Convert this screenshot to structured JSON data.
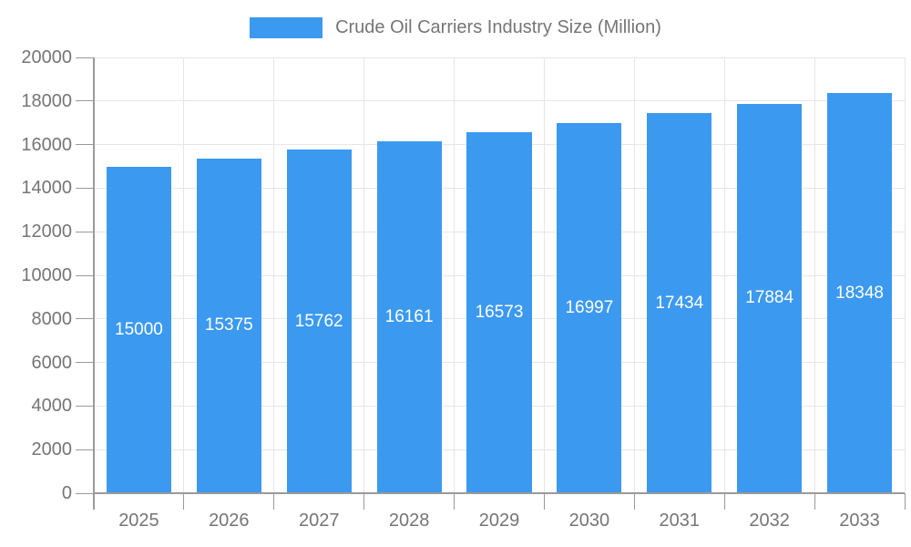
{
  "chart_data": {
    "type": "bar",
    "title": "Crude Oil Carriers Industry Size (Million)",
    "categories": [
      "2025",
      "2026",
      "2027",
      "2028",
      "2029",
      "2030",
      "2031",
      "2032",
      "2033"
    ],
    "values": [
      15000,
      15375,
      15762,
      16161,
      16573,
      16997,
      17434,
      17884,
      18348
    ],
    "xlabel": "",
    "ylabel": "",
    "ylim": [
      0,
      20000
    ],
    "ytick_step": 2000,
    "grid": true,
    "legend_position": "top",
    "value_labels": "inside-bar-centered"
  },
  "colors": {
    "bar": "#3c99f0",
    "bar_label_text": "#ffffff",
    "grid": "#e6e6e6",
    "axis": "#9a9a9a",
    "tick_text": "#757575",
    "legend_text": "#757575"
  }
}
